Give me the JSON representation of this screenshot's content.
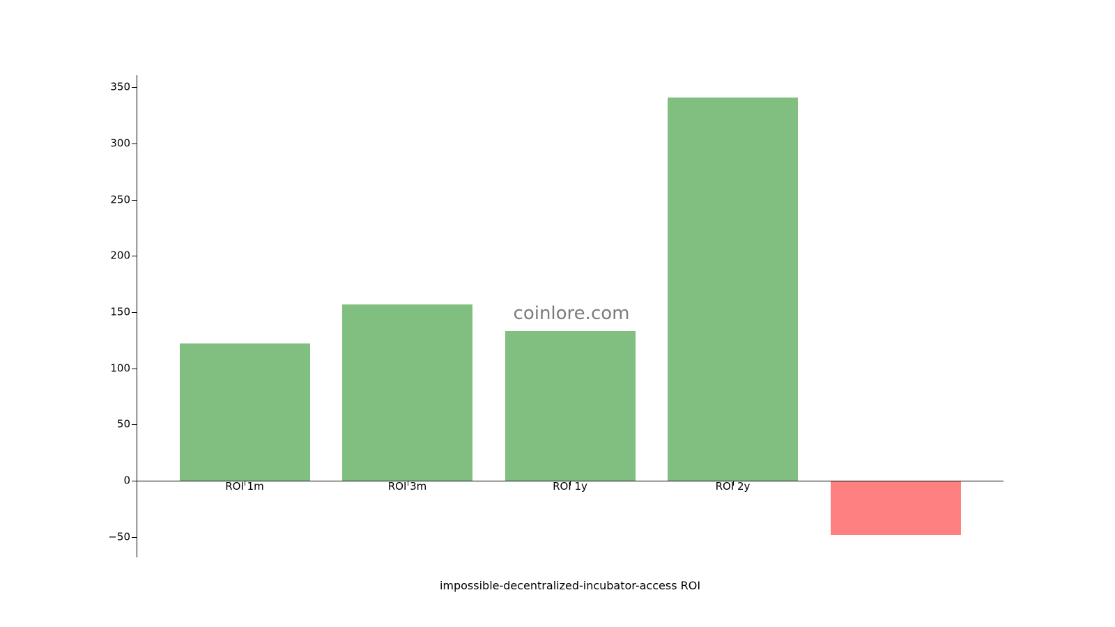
{
  "page": {
    "background": "#ffffff"
  },
  "chart_data": {
    "type": "bar",
    "title": "impossible-decentralized-incubator-access ROI",
    "watermark": "coinlore.com",
    "categories": [
      "ROI 1m",
      "ROI 3m",
      "ROI 1y",
      "ROI 2y",
      ""
    ],
    "values": [
      122,
      157,
      133,
      341,
      -48
    ],
    "positive_color": "#80bf80",
    "negative_color": "#ff8080",
    "y_ticks": [
      -50,
      0,
      50,
      100,
      150,
      200,
      250,
      300,
      350
    ],
    "ylim": [
      -68,
      362
    ],
    "xlabel": "",
    "ylabel": "",
    "grid": false,
    "legend_position": "none",
    "axis_color": "#000000",
    "tick_label_color": "#000000",
    "watermark_color": "#7c7c7c"
  }
}
